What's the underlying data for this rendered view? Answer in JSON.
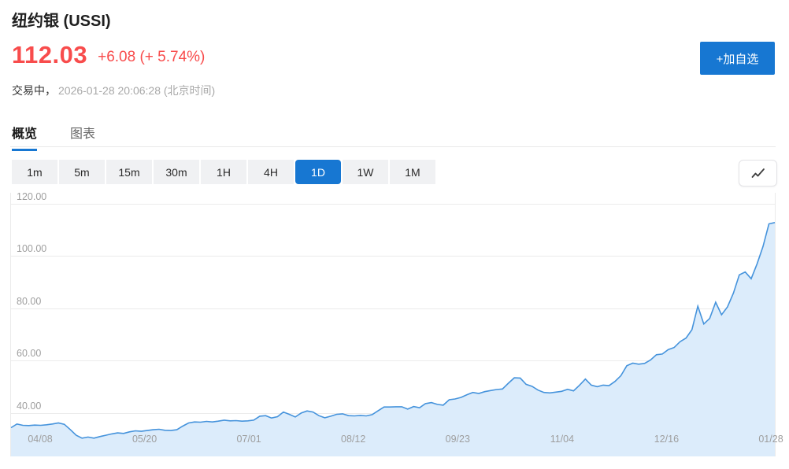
{
  "header": {
    "title": "纽约银 (USSI)",
    "price": "112.03",
    "change": "+6.08 (+ 5.74%)",
    "trading_status": "交易中，",
    "timestamp": "2026-01-28 20:06:28 (北京时间)",
    "add_watchlist_label": "+加自选"
  },
  "tabs": [
    {
      "name": "tab-overview",
      "label": "概览",
      "active": true
    },
    {
      "name": "tab-chart",
      "label": "图表",
      "active": false
    }
  ],
  "time_ranges": [
    {
      "name": "range-1m",
      "label": "1m",
      "active": false
    },
    {
      "name": "range-5m",
      "label": "5m",
      "active": false
    },
    {
      "name": "range-15m",
      "label": "15m",
      "active": false
    },
    {
      "name": "range-30m",
      "label": "30m",
      "active": false
    },
    {
      "name": "range-1h",
      "label": "1H",
      "active": false
    },
    {
      "name": "range-4h",
      "label": "4H",
      "active": false
    },
    {
      "name": "range-1d",
      "label": "1D",
      "active": true
    },
    {
      "name": "range-1w",
      "label": "1W",
      "active": false
    },
    {
      "name": "range-1m-month",
      "label": "1M",
      "active": false
    }
  ],
  "toolbar": {
    "chart_type_icon": "trend-line-icon"
  },
  "colors": {
    "accent_blue": "#1777d2",
    "price_red": "#f84c4c",
    "line_blue": "#4593dc",
    "fill_blue": "#dcecfb",
    "grid_gray": "#ebebeb"
  },
  "chart_data": {
    "type": "area",
    "title": "纽约银 (USSI) 1D",
    "xlabel": "",
    "ylabel": "",
    "grid": true,
    "legend": false,
    "x_ticks": [
      "04/08",
      "05/20",
      "07/01",
      "08/12",
      "09/23",
      "11/04",
      "12/16",
      "01/28"
    ],
    "y_ticks": [
      120,
      100,
      80,
      60,
      40
    ],
    "y_tick_labels": [
      "120.00",
      "100.00",
      "80.00",
      "60.00",
      "40.00"
    ],
    "ylim": [
      23.3,
      124.2
    ],
    "values": [
      34.3,
      35.7,
      35.2,
      35.1,
      35.3,
      35.2,
      35.4,
      35.7,
      36.1,
      35.6,
      33.6,
      31.4,
      30.3,
      30.7,
      30.3,
      30.9,
      31.4,
      31.9,
      32.3,
      32.1,
      32.7,
      33.1,
      32.9,
      33.2,
      33.5,
      33.7,
      33.3,
      33.2,
      33.5,
      34.9,
      36.1,
      36.5,
      36.4,
      36.7,
      36.5,
      36.8,
      37.2,
      36.9,
      37.0,
      36.8,
      36.9,
      37.2,
      38.7,
      38.9,
      38.0,
      38.5,
      40.3,
      39.4,
      38.4,
      39.9,
      40.7,
      40.3,
      38.9,
      38.1,
      38.7,
      39.4,
      39.6,
      38.9,
      38.8,
      39.0,
      38.8,
      39.3,
      40.8,
      42.2,
      42.2,
      42.3,
      42.3,
      41.4,
      42.4,
      41.9,
      43.5,
      43.9,
      43.2,
      42.9,
      45.0,
      45.3,
      45.9,
      46.9,
      47.8,
      47.4,
      48.1,
      48.5,
      48.9,
      49.1,
      51.3,
      53.4,
      53.3,
      50.9,
      50.1,
      48.7,
      47.8,
      47.6,
      47.9,
      48.2,
      49.0,
      48.4,
      50.5,
      52.9,
      50.6,
      50.0,
      50.6,
      50.4,
      52.0,
      54.2,
      58.0,
      59.0,
      58.6,
      58.9,
      60.2,
      62.2,
      62.5,
      64.2,
      65.0,
      67.2,
      68.6,
      71.8,
      80.8,
      74.0,
      76.1,
      82.3,
      77.5,
      80.5,
      85.8,
      92.8,
      93.9,
      91.3,
      97.0,
      103.6,
      112.3,
      112.8
    ]
  }
}
